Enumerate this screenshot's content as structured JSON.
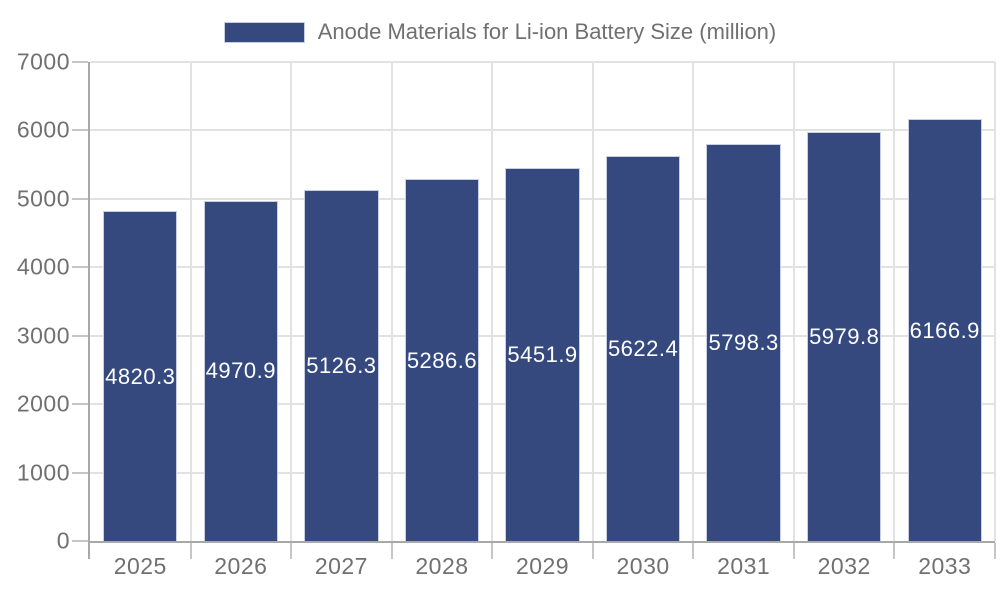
{
  "chart_data": {
    "type": "bar",
    "legend": "Anode Materials for Li-ion Battery Size (million)",
    "categories": [
      "2025",
      "2026",
      "2027",
      "2028",
      "2029",
      "2030",
      "2031",
      "2032",
      "2033"
    ],
    "values": [
      4820.3,
      4970.9,
      5126.3,
      5286.6,
      5451.9,
      5622.4,
      5798.3,
      5979.8,
      6166.9
    ],
    "value_labels": [
      "4820.3",
      "4970.9",
      "5126.3",
      "5286.6",
      "5451.9",
      "5622.4",
      "5798.3",
      "5979.8",
      "6166.9"
    ],
    "xlabel": "",
    "ylabel": "",
    "ylim": [
      0,
      7000
    ],
    "yticks": [
      0,
      1000,
      2000,
      3000,
      4000,
      5000,
      6000,
      7000
    ],
    "grid": "on",
    "legend_position": "top-center",
    "colors": {
      "bar": "#35497E",
      "bar_border": "#C9CFE2",
      "axis": "#A8A8A8",
      "tick": "#C6C6C6",
      "grid": "#E2E2E2",
      "text": "#707070",
      "value_label": "#FFFFFF",
      "background": "#FFFFFF"
    }
  }
}
